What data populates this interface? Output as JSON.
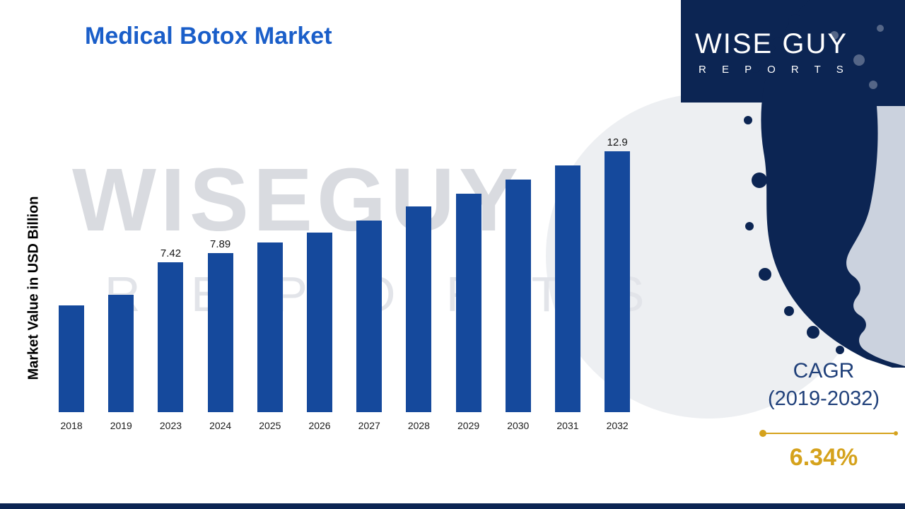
{
  "title": "Medical Botox Market",
  "brand": {
    "name_line1": "WISE GUY",
    "name_line2": "R E P O R T S"
  },
  "watermark": {
    "line1": "WISEGUY",
    "line2": "R E P O R T S"
  },
  "cagr": {
    "label": "CAGR",
    "range": "(2019-2032)",
    "value": "6.34%"
  },
  "colors": {
    "navy": "#0c2553",
    "bar_blue": "#15499c",
    "title_blue": "#1a5ec9",
    "gold": "#d5a21c"
  },
  "chart_data": {
    "type": "bar",
    "title": "Medical Botox Market",
    "xlabel": "",
    "ylabel": "Market Value in USD Billion",
    "ylim": [
      0,
      14
    ],
    "grid": false,
    "legend": false,
    "bar_color": "#15499c",
    "categories": [
      "2018",
      "2019",
      "2023",
      "2024",
      "2025",
      "2026",
      "2027",
      "2028",
      "2029",
      "2030",
      "2031",
      "2032"
    ],
    "values": [
      5.3,
      5.8,
      7.42,
      7.89,
      8.4,
      8.9,
      9.5,
      10.2,
      10.8,
      11.5,
      12.2,
      12.9
    ],
    "value_labels": [
      "",
      "",
      "7.42",
      "7.89",
      "",
      "",
      "",
      "",
      "",
      "",
      "",
      "12.9"
    ]
  }
}
